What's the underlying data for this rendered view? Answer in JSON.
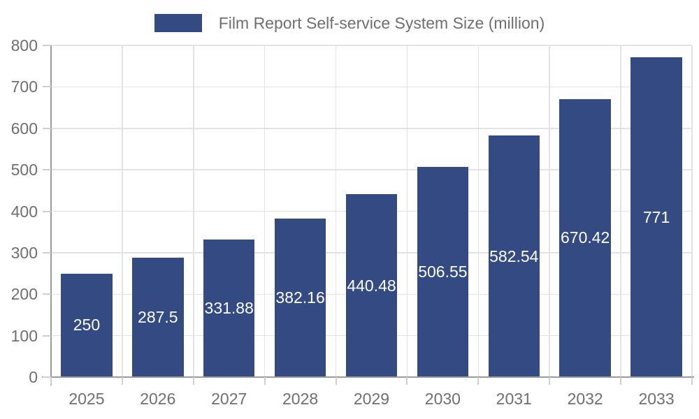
{
  "chart_data": {
    "type": "bar",
    "title": "Film Report Self-service System Size (million)",
    "categories": [
      "2025",
      "2026",
      "2027",
      "2028",
      "2029",
      "2030",
      "2031",
      "2032",
      "2033"
    ],
    "values": [
      250,
      287.5,
      331.88,
      382.16,
      440.48,
      506.55,
      582.54,
      670.42,
      771
    ],
    "value_labels": [
      "250",
      "287.5",
      "331.88",
      "382.16",
      "440.48",
      "506.55",
      "582.54",
      "670.42",
      "771"
    ],
    "xlabel": "",
    "ylabel": "",
    "ylim": [
      0,
      800
    ],
    "yticks": [
      0,
      100,
      200,
      300,
      400,
      500,
      600,
      700,
      800
    ],
    "grid": true,
    "legend_position": "top-center",
    "bar_width_fraction": 0.72,
    "colors": {
      "bar": "#344a82",
      "bar_label": "#ffffff",
      "axis_text": "#6f6f6f",
      "grid": "#e3e3e3",
      "axis_line": "#9a9a9a",
      "tick": "#cfcfcf",
      "background": "#ffffff"
    }
  }
}
